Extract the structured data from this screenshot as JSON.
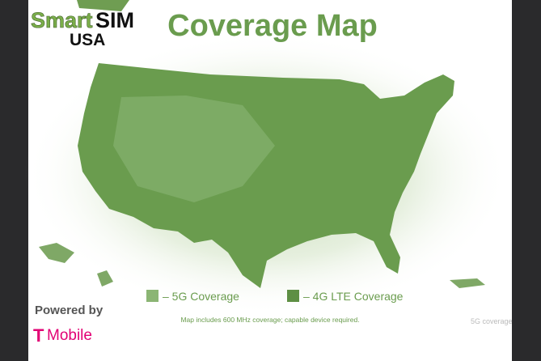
{
  "header": {
    "logo_smart": "Smart",
    "logo_sim": "SIM",
    "logo_usa": "USA",
    "title": "Coverage Map"
  },
  "legend": {
    "items": [
      {
        "label": "– 5G Coverage"
      },
      {
        "label": "– 4G LTE Coverage"
      }
    ]
  },
  "note": "Map includes 600 MHz coverage; capable device required.",
  "footer": {
    "powered_by": "Powered by",
    "brand_t": "T",
    "brand_mobile": "Mobile"
  },
  "watermark": "5G coverage"
}
